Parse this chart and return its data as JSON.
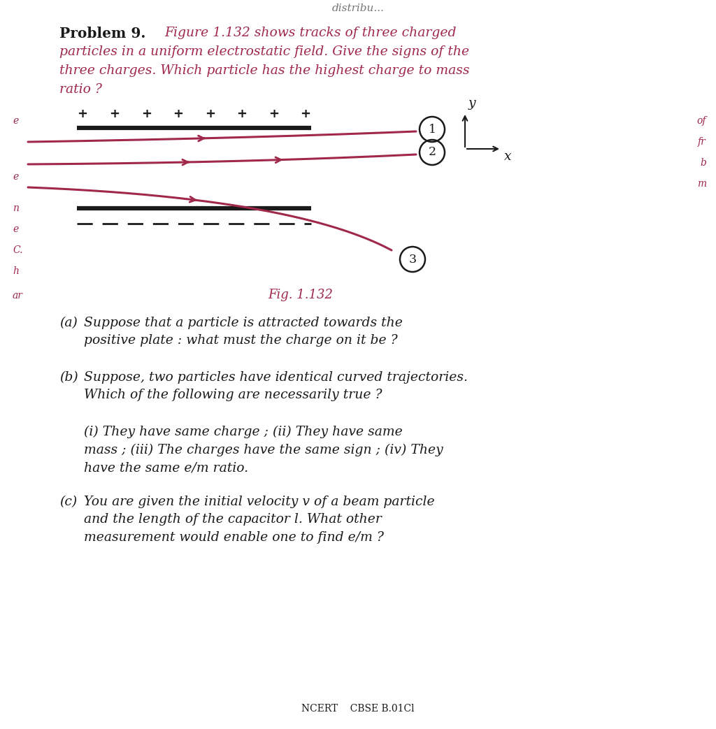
{
  "page_color": "#ddd9d0",
  "track_color": "#a0284a",
  "plate_color": "#1a1a1a",
  "circle_color": "#1a1a1a",
  "dark": "#1a1a1a",
  "red": "#a0284a",
  "problem_bold": "Problem 9.",
  "problem_italic": "Figure 1.132 shows tracks of three charged\nparticles in a uniform electrostatic field. Give the signs of the\nthree charges. Which particle has the highest charge to mass\nratio ?",
  "fig_label": "Fig. 1.132",
  "qa_text": "(a) Suppose that a particle is attracted towards the\n     positive plate : what must the charge on it be ?",
  "qb_text": "(b) Suppose, two particles have identical curved trajectories.\n     Which of the following are necessarily true ?",
  "qb_items": "     (i) They have same charge ; (ii) They have same\n     mass ; (iii) The charges have the same sign ; (iv) They\n     have the same e/m ratio.",
  "qc_text": "(c) You are given the initial velocity v of a beam particle\n     and the length of the capacitor l. What other\n     measurement would enable one to find e/m ?",
  "left_margin_labels": [
    [
      "e",
      870
    ],
    [
      "e",
      790
    ],
    [
      "n",
      745
    ],
    [
      "e",
      715
    ],
    [
      "C.",
      685
    ],
    [
      "h",
      655
    ],
    [
      "ar",
      620
    ]
  ],
  "right_margin_labels": [
    [
      "of",
      870
    ],
    [
      "fr",
      840
    ],
    [
      "b",
      810
    ],
    [
      "m",
      780
    ]
  ]
}
